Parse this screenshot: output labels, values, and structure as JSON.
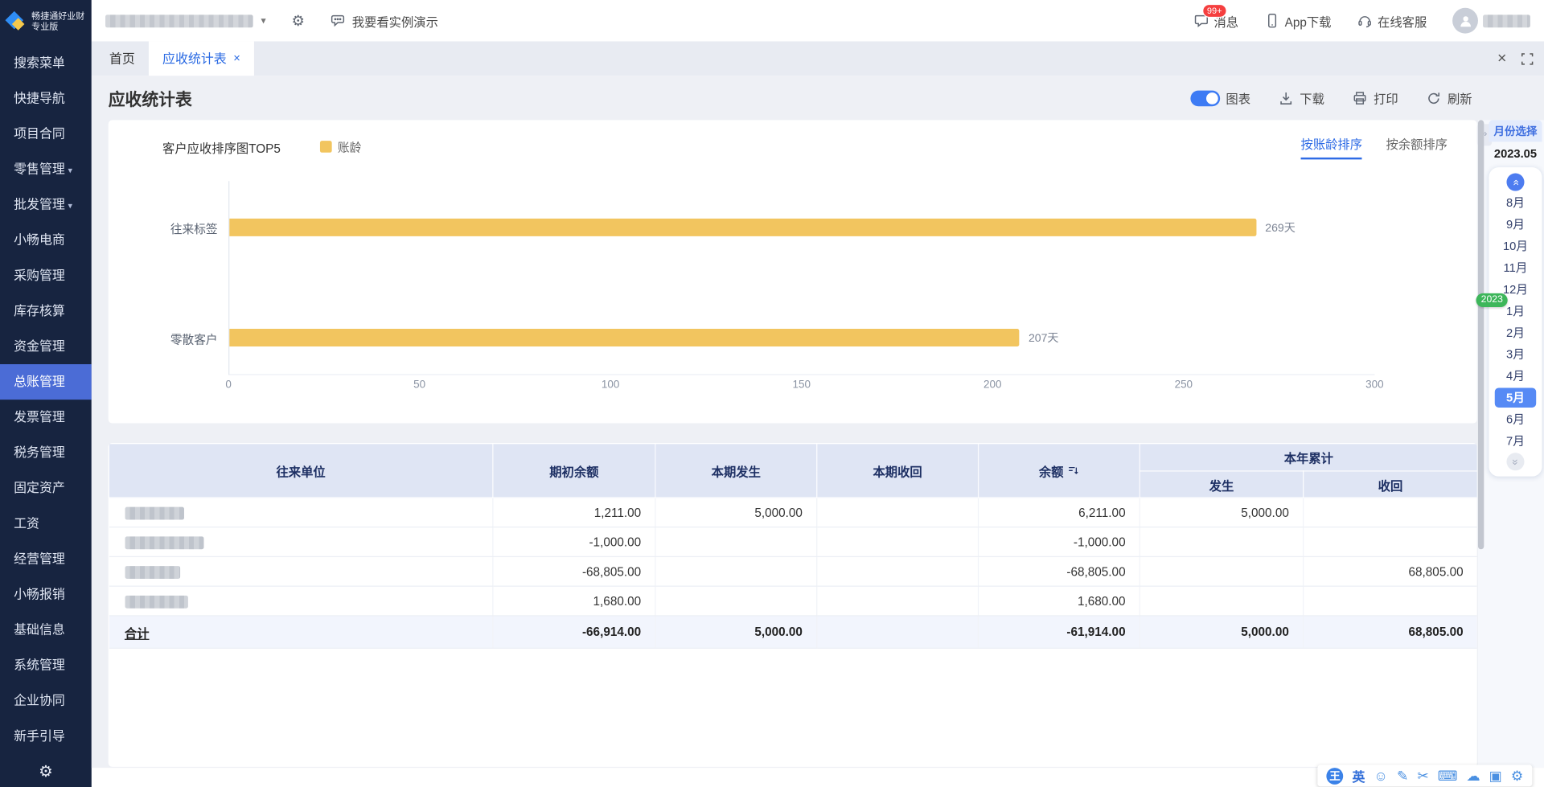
{
  "icons": {
    "gear": "⚙",
    "caret_down": "▾",
    "chevron_double": "«",
    "close": "×",
    "collapse_right": "»"
  },
  "app": {
    "brand_line1": "畅捷通好业财",
    "brand_line2": "专业版"
  },
  "sidebar": {
    "items": [
      {
        "label": "搜索菜单",
        "dropdown": false,
        "active": false
      },
      {
        "label": "快捷导航",
        "dropdown": false,
        "active": false
      },
      {
        "label": "项目合同",
        "dropdown": false,
        "active": false
      },
      {
        "label": "零售管理",
        "dropdown": true,
        "active": false
      },
      {
        "label": "批发管理",
        "dropdown": true,
        "active": false
      },
      {
        "label": "小畅电商",
        "dropdown": false,
        "active": false
      },
      {
        "label": "采购管理",
        "dropdown": false,
        "active": false
      },
      {
        "label": "库存核算",
        "dropdown": false,
        "active": false
      },
      {
        "label": "资金管理",
        "dropdown": false,
        "active": false
      },
      {
        "label": "总账管理",
        "dropdown": false,
        "active": true
      },
      {
        "label": "发票管理",
        "dropdown": false,
        "active": false
      },
      {
        "label": "税务管理",
        "dropdown": false,
        "active": false
      },
      {
        "label": "固定资产",
        "dropdown": false,
        "active": false
      },
      {
        "label": "工资",
        "dropdown": false,
        "active": false
      },
      {
        "label": "经营管理",
        "dropdown": false,
        "active": false
      },
      {
        "label": "小畅报销",
        "dropdown": false,
        "active": false
      },
      {
        "label": "基础信息",
        "dropdown": false,
        "active": false
      },
      {
        "label": "系统管理",
        "dropdown": false,
        "active": false
      },
      {
        "label": "企业协同",
        "dropdown": false,
        "active": false
      },
      {
        "label": "新手引导",
        "dropdown": false,
        "active": false
      }
    ]
  },
  "topbar": {
    "demo_link": "我要看实例演示",
    "message_label": "消息",
    "message_badge": "99+",
    "app_download_label": "App下载",
    "service_label": "在线客服"
  },
  "tabs": {
    "home": "首页",
    "report": "应收统计表"
  },
  "page": {
    "title": "应收统计表",
    "chart_toggle_label": "图表",
    "download_label": "下载",
    "print_label": "打印",
    "refresh_label": "刷新"
  },
  "chart_data": {
    "type": "bar",
    "orientation": "horizontal",
    "title": "客户应收排序图TOP5",
    "legend": [
      "账龄"
    ],
    "categories": [
      "往来标签",
      "零散客户"
    ],
    "values": [
      269,
      207
    ],
    "value_labels": [
      "269天",
      "207天"
    ],
    "unit": "天",
    "xlim": [
      0,
      300
    ],
    "x_ticks": [
      0,
      50,
      100,
      150,
      200,
      250,
      300
    ],
    "bar_color": "#f2c55f",
    "grid": false,
    "legend_position": "top-left",
    "sort_tabs": [
      "按账龄排序",
      "按余额排序"
    ],
    "active_sort": "按账龄排序"
  },
  "table": {
    "headers": {
      "unit": "往来单位",
      "initial": "期初余额",
      "occurred": "本期发生",
      "recovered": "本期收回",
      "balance": "余额",
      "year_total": "本年累计",
      "year_occurred": "发生",
      "year_recovered": "收回"
    },
    "rows": [
      {
        "name_redacted": true,
        "initial": "1,211.00",
        "occurred": "5,000.00",
        "recovered": "",
        "balance": "6,211.00",
        "year_occurred": "5,000.00",
        "year_recovered": ""
      },
      {
        "name_redacted": true,
        "initial": "-1,000.00",
        "occurred": "",
        "recovered": "",
        "balance": "-1,000.00",
        "year_occurred": "",
        "year_recovered": ""
      },
      {
        "name_redacted": true,
        "initial": "-68,805.00",
        "occurred": "",
        "recovered": "",
        "balance": "-68,805.00",
        "year_occurred": "",
        "year_recovered": "68,805.00"
      },
      {
        "name_redacted": true,
        "initial": "1,680.00",
        "occurred": "",
        "recovered": "",
        "balance": "1,680.00",
        "year_occurred": "",
        "year_recovered": ""
      }
    ],
    "total_row": {
      "label": "合计",
      "initial": "-66,914.00",
      "occurred": "5,000.00",
      "recovered": "",
      "balance": "-61,914.00",
      "year_occurred": "5,000.00",
      "year_recovered": "68,805.00"
    }
  },
  "month_panel": {
    "title": "月份选择",
    "current": "2023.05",
    "year_badge": "2023",
    "months": [
      "8月",
      "9月",
      "10月",
      "11月",
      "12月",
      "1月",
      "2月",
      "3月",
      "4月",
      "5月",
      "6月",
      "7月"
    ],
    "selected": "5月"
  },
  "ime": {
    "logo": "王",
    "lang": "英",
    "icons": [
      {
        "name": "smiley-icon",
        "glyph": "☺"
      },
      {
        "name": "pen-icon",
        "glyph": "✎"
      },
      {
        "name": "scissors-icon",
        "glyph": "✂"
      },
      {
        "name": "keyboard-icon",
        "glyph": "⌨"
      },
      {
        "name": "cloud-icon",
        "glyph": "☁"
      },
      {
        "name": "toolbox-icon",
        "glyph": "▣"
      },
      {
        "name": "gear-icon",
        "glyph": "⚙"
      }
    ]
  }
}
